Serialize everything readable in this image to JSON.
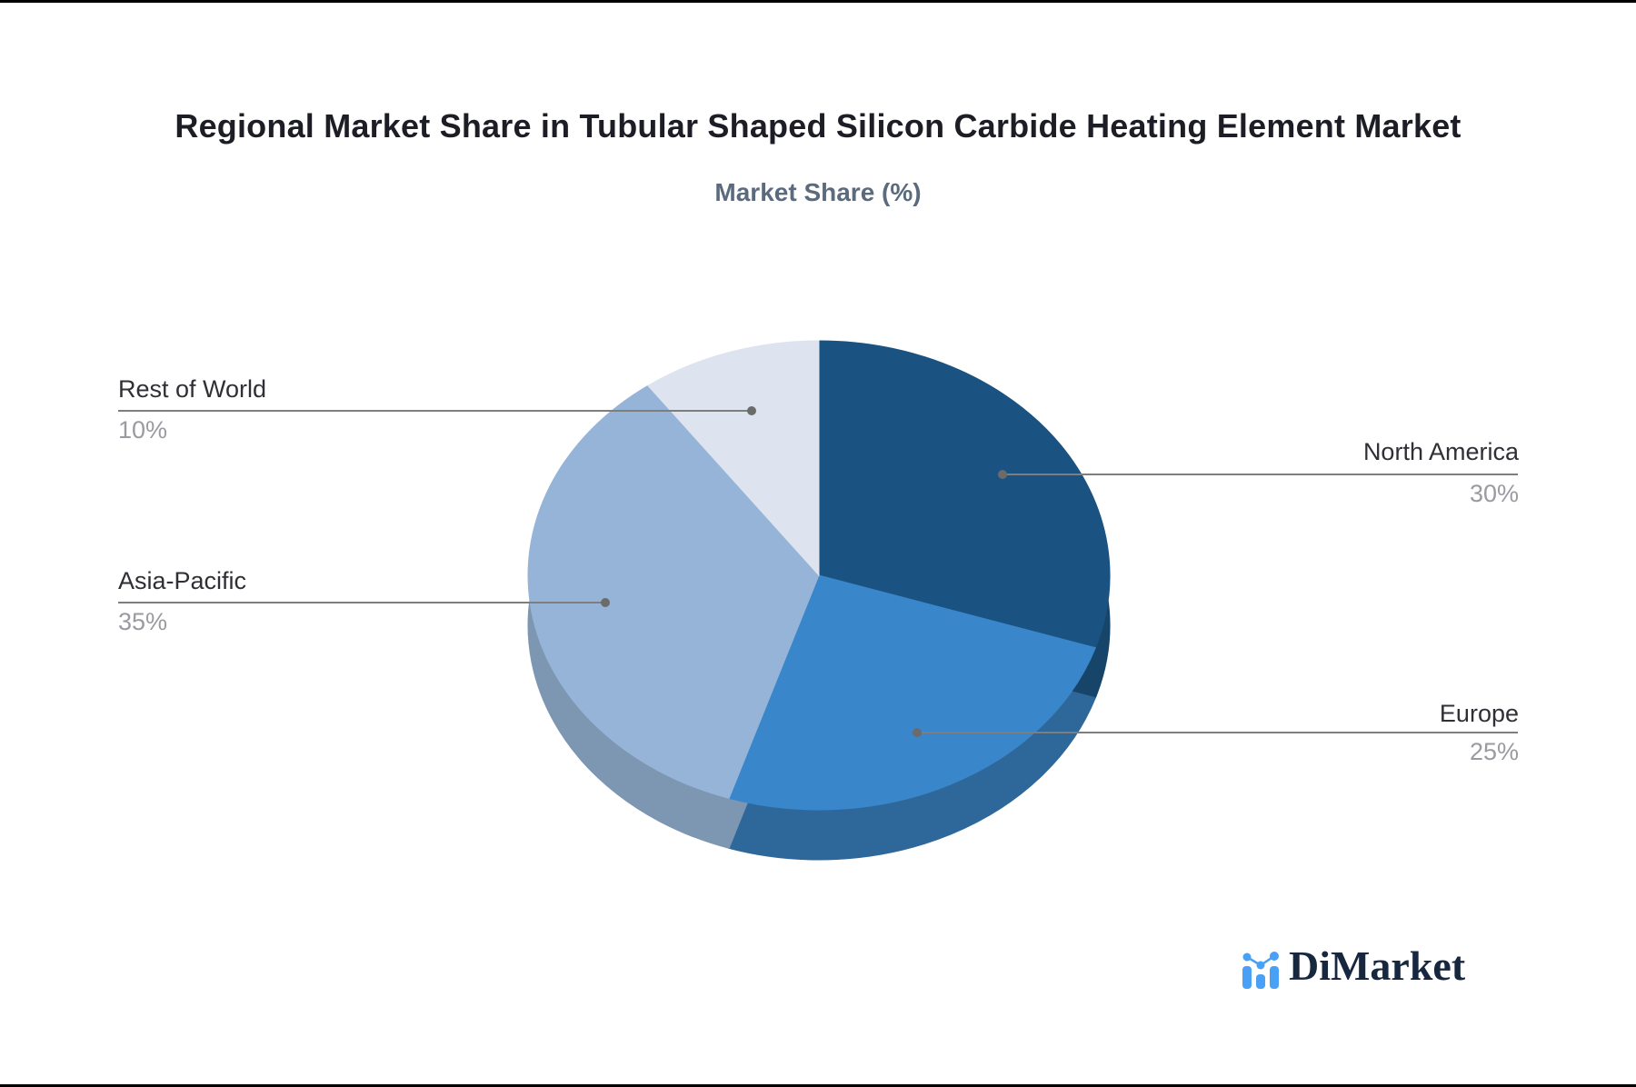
{
  "header": {
    "title": "Regional Market Share in Tubular Shaped Silicon Carbide Heating Element Market",
    "subtitle": "Market Share (%)",
    "title_color": "#1d1d26",
    "subtitle_color": "#5b6b7d"
  },
  "chart_data": {
    "type": "pie",
    "title": "Regional Market Share in Tubular Shaped Silicon Carbide Heating Element Market",
    "subtitle": "Market Share (%)",
    "unit": "%",
    "effect": "3d",
    "start_angle_deg": 0,
    "direction": "clockwise",
    "legend_position": "callouts",
    "segments": [
      {
        "label": "North America",
        "value": 30,
        "display": "30%",
        "color": "#1a5282",
        "side_color": "#164569"
      },
      {
        "label": "Europe",
        "value": 25,
        "display": "25%",
        "color": "#3a86ca",
        "side_color": "#2e689b"
      },
      {
        "label": "Asia-Pacific",
        "value": 35,
        "display": "35%",
        "color": "#96b4d8",
        "side_color": "#7d96b2"
      },
      {
        "label": "Rest of World",
        "value": 10,
        "display": "10%",
        "color": "#dde4ef",
        "side_color": "#b9c2d1"
      }
    ],
    "label_color": "#2f2f35",
    "pct_color": "#9a9aa0",
    "leader_line_color": "#7e7e7e"
  },
  "logo": {
    "text": "DiMarket",
    "text_color": "#17273f",
    "icon": "bar-chart-icon",
    "icon_color": "#49a0f5"
  }
}
